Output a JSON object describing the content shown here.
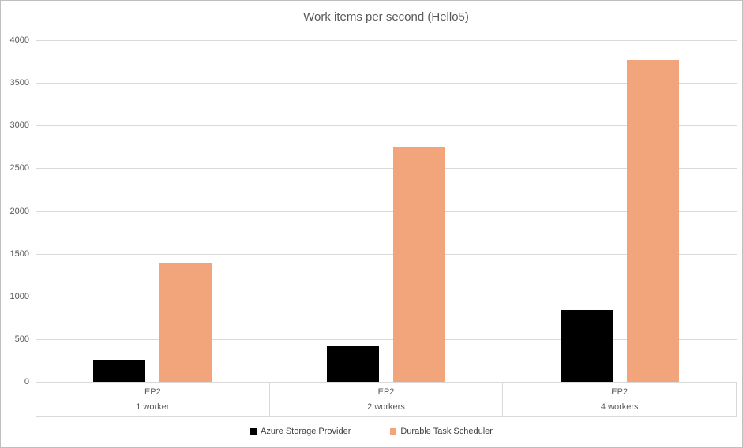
{
  "chart_data": {
    "type": "bar",
    "title": "Work items per second (Hello5)",
    "categories": [
      {
        "group": "EP2",
        "sub": "1 worker"
      },
      {
        "group": "EP2",
        "sub": "2 workers"
      },
      {
        "group": "EP2",
        "sub": "4 workers"
      }
    ],
    "series": [
      {
        "name": "Azure Storage Provider",
        "color": "#000000",
        "values": [
          255,
          415,
          840
        ]
      },
      {
        "name": "Durable Task Scheduler",
        "color": "#f2a47b",
        "values": [
          1395,
          2740,
          3770
        ]
      }
    ],
    "y_ticks": [
      0,
      500,
      1000,
      1500,
      2000,
      2500,
      3000,
      3500,
      4000
    ],
    "ylim": [
      0,
      4000
    ],
    "grid": true,
    "legend_position": "bottom",
    "colors": {
      "title_text": "#595959",
      "axis_text": "#595959",
      "gridline": "#d9d9d9",
      "frame_border": "#bfbfbf",
      "background": "#ffffff"
    }
  }
}
